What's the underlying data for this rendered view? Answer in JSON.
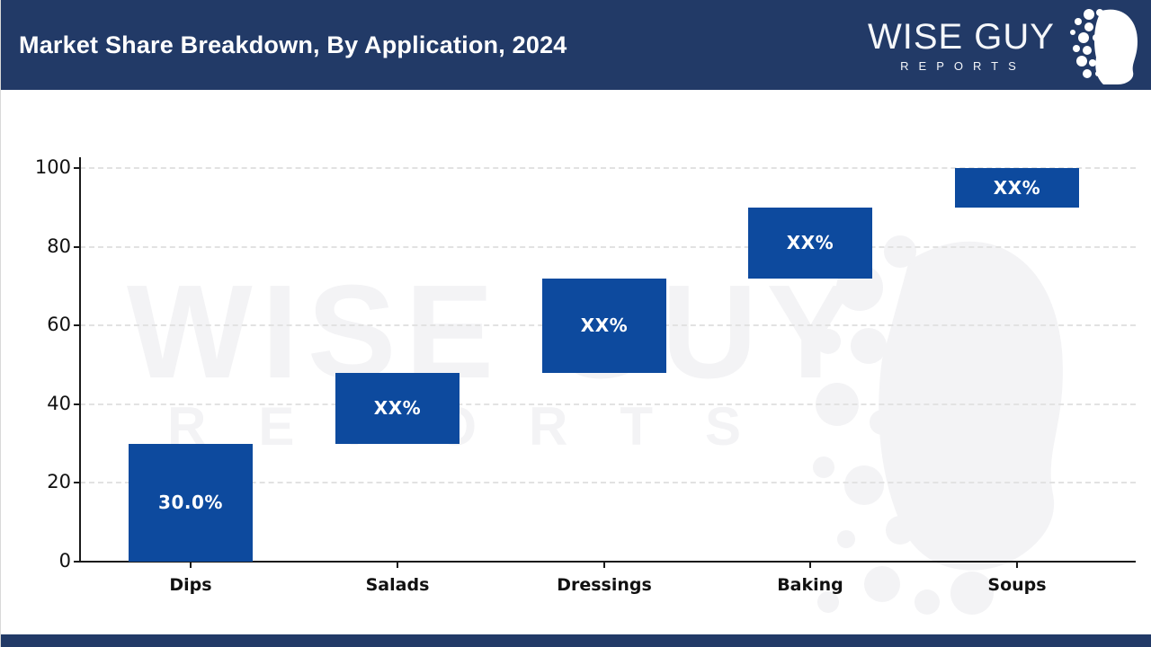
{
  "header": {
    "title": "Market Share Breakdown, By Application, 2024",
    "logo": {
      "line1": "WISE GUY",
      "line2": "REPORTS"
    }
  },
  "watermark": {
    "line1": "WISE GUY",
    "line2": "REPORTS"
  },
  "colors": {
    "header_navy": "#223a67",
    "footer_navy": "#223a67",
    "bar_blue": "#0d4a9e",
    "axis_black": "#1a1a1a",
    "gridline_gray": "#e2e2e2",
    "watermark_gray": "#f3f3f5"
  },
  "chart_data": {
    "type": "bar",
    "subtype": "waterfall-floating-bars",
    "title": "Market Share Breakdown, By Application, 2024",
    "categories": [
      "Dips",
      "Salads",
      "Dressings",
      "Baking",
      "Soups"
    ],
    "segments": [
      {
        "category": "Dips",
        "start": 0,
        "end": 30,
        "value": 30,
        "label": "30.0%"
      },
      {
        "category": "Salads",
        "start": 30,
        "end": 48,
        "value": 18,
        "label": "XX%"
      },
      {
        "category": "Dressings",
        "start": 48,
        "end": 72,
        "value": 24,
        "label": "XX%"
      },
      {
        "category": "Baking",
        "start": 72,
        "end": 90,
        "value": 18,
        "label": "XX%"
      },
      {
        "category": "Soups",
        "start": 90,
        "end": 100,
        "value": 10,
        "label": "XX%"
      }
    ],
    "yticks": [
      0,
      20,
      40,
      60,
      80,
      100
    ],
    "ylim": [
      0,
      102.7
    ],
    "xlabel": "",
    "ylabel": "",
    "legend": "none",
    "grid": "horizontal-dashed"
  }
}
